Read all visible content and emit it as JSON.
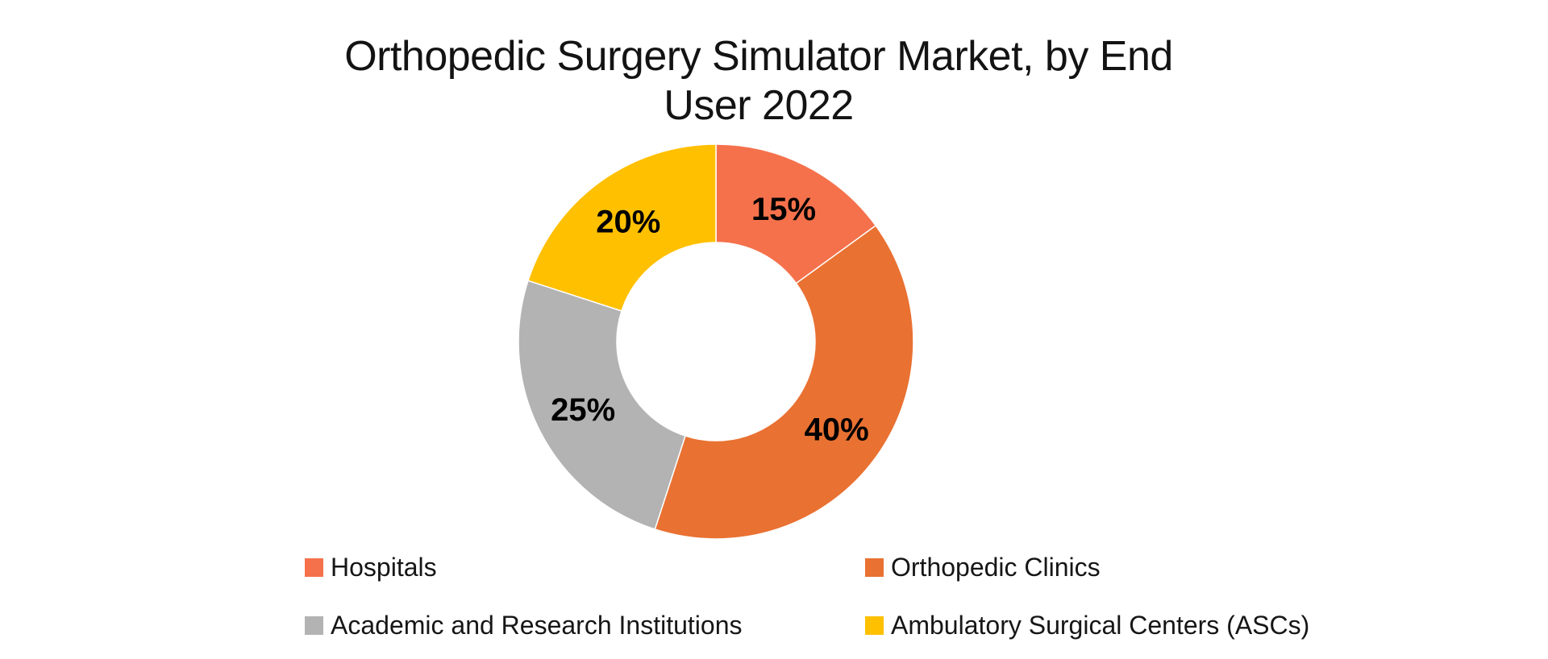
{
  "chart_data": {
    "type": "pie",
    "subtype": "donut",
    "title": "Orthopedic Surgery Simulator Market, by End User 2022",
    "title_lines": [
      "Orthopedic Surgery Simulator Market, by End",
      "User 2022"
    ],
    "categories": [
      "Hospitals",
      "Orthopedic Clinics",
      "Academic and Research Institutions",
      "Ambulatory Surgical Centers (ASCs)"
    ],
    "values": [
      15,
      40,
      25,
      20
    ],
    "data_labels": [
      "15%",
      "40%",
      "25%",
      "20%"
    ],
    "colors": [
      "#F5714B",
      "#E97132",
      "#B3B3B3",
      "#FFC000"
    ],
    "unit": "%",
    "start_angle_deg": 0,
    "direction": "clockwise",
    "hole_ratio": 0.5,
    "legend_position": "bottom",
    "label_color": "#000000",
    "title_color": "#131313",
    "background_color": "#ffffff"
  }
}
